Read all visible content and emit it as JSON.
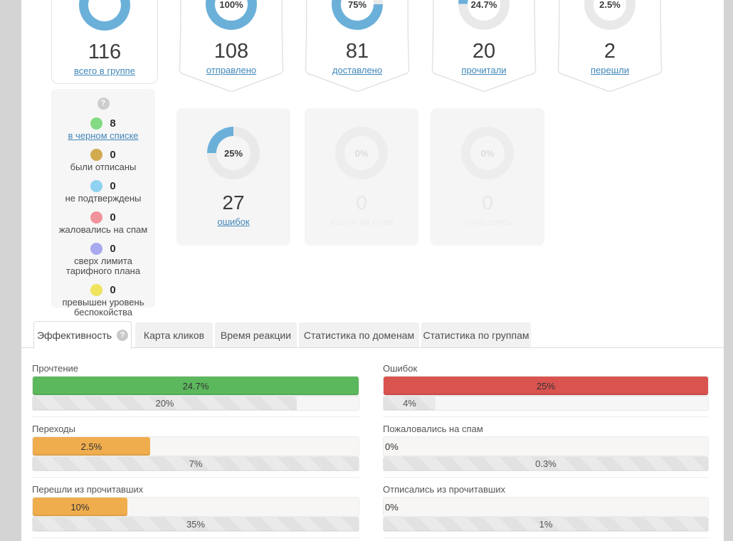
{
  "theme": {
    "blue": "#6bb0d9",
    "ring_track": "#e9e9e9",
    "ring_faded": "#ededed",
    "link": "#4187b9",
    "green": "#5cb85c",
    "red": "#d9534f",
    "orange": "#f0ad4e",
    "side_gray": "#d4d4d4"
  },
  "help_icon": "?",
  "summary_cards": [
    {
      "value": "116",
      "label": "всего в группе",
      "pct": "",
      "pct_num": 100
    },
    {
      "value": "108",
      "label": "отправлено",
      "pct": "100%",
      "pct_num": 100
    },
    {
      "value": "81",
      "label": "доставлено",
      "pct": "75%",
      "pct_num": 75
    },
    {
      "value": "20",
      "label": "прочитали",
      "pct": "24.7%",
      "pct_num": 24.7
    },
    {
      "value": "2",
      "label": "перешли",
      "pct": "2.5%",
      "pct_num": 2.5
    }
  ],
  "legend": {
    "items": [
      {
        "color": "#83da83",
        "value": "8",
        "label": "в черном списке"
      },
      {
        "color": "#d2ab51",
        "value": "0",
        "label": "были отписаны"
      },
      {
        "color": "#8ed1f0",
        "value": "0",
        "label": "не подтверждены"
      },
      {
        "color": "#f1939c",
        "value": "0",
        "label": "жаловались на спам"
      },
      {
        "color": "#a9a9ef",
        "value": "0",
        "label": "сверх лимита тарифного плана"
      },
      {
        "color": "#f0e35f",
        "value": "0",
        "label": "превышен уровень беспокойства"
      }
    ]
  },
  "secondary_cards": [
    {
      "value": "27",
      "label": "ошибок",
      "pct": "25%",
      "pct_num": 25
    },
    {
      "value": "0",
      "label": "жалоб на спам",
      "pct": "0%",
      "pct_num": 0
    },
    {
      "value": "0",
      "label": "отписались",
      "pct": "0%",
      "pct_num": 0
    }
  ],
  "tabs": [
    {
      "label": "Эффективность"
    },
    {
      "label": "Карта кликов"
    },
    {
      "label": "Время реакции"
    },
    {
      "label": "Статистика по доменам"
    },
    {
      "label": "Статистика по группам"
    }
  ],
  "metrics": {
    "left": [
      {
        "title": "Прочтение",
        "value_label": "24.7%",
        "value_width": 100,
        "avg_label": "20%",
        "avg_width": 81
      },
      {
        "title": "Переходы",
        "value_label": "2.5%",
        "value_width": 36,
        "avg_label": "7%",
        "avg_width": 100
      },
      {
        "title": "Перешли из прочитавших",
        "value_label": "10%",
        "value_width": 29,
        "avg_label": "35%",
        "avg_width": 100
      }
    ],
    "right": [
      {
        "title": "Ошибок",
        "value_label": "25%",
        "value_width": 100,
        "avg_label": "4%",
        "avg_width": 16
      },
      {
        "title": "Пожаловались на спам",
        "value_label": "0%",
        "value_width": 0,
        "avg_label": "0.3%",
        "avg_width": 100
      },
      {
        "title": "Отписались из прочитавших",
        "value_label": "0%",
        "value_width": 0,
        "avg_label": "1%",
        "avg_width": 100
      }
    ]
  }
}
